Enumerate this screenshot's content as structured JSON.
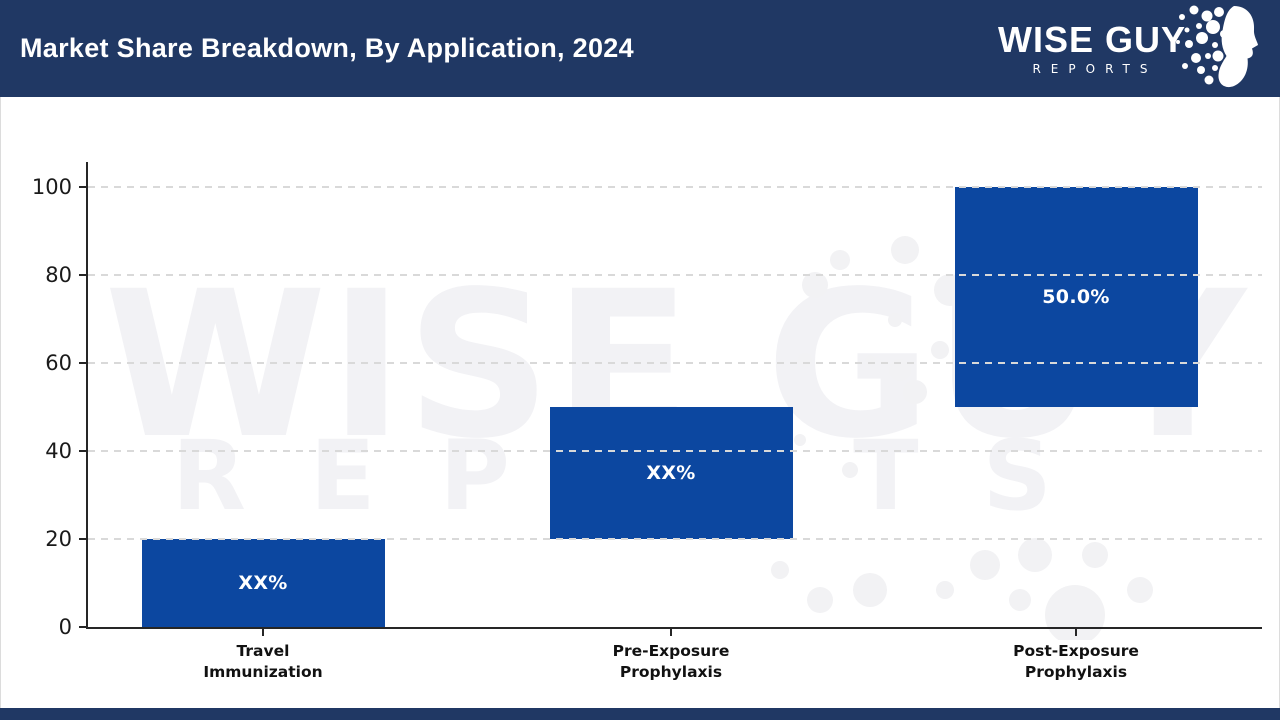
{
  "header": {
    "title": "Market Share Breakdown, By Application, 2024",
    "logo_line1": "WISE GUY",
    "logo_line2": "REPORTS"
  },
  "watermark": {
    "line1": "WISE GUY",
    "line2": "REPORTS"
  },
  "chart_data": {
    "type": "bar",
    "variant": "waterfall",
    "categories": [
      "Travel Immunization",
      "Pre-Exposure Prophylaxis",
      "Post-Exposure Prophylaxis"
    ],
    "category_lines": [
      [
        "Travel",
        "Immunization"
      ],
      [
        "Pre-Exposure",
        "Prophylaxis"
      ],
      [
        "Post-Exposure",
        "Prophylaxis"
      ]
    ],
    "series": [
      {
        "name": "Travel Immunization",
        "start": 0,
        "end": 20,
        "label": "XX%"
      },
      {
        "name": "Pre-Exposure Prophylaxis",
        "start": 20,
        "end": 50,
        "label": "XX%"
      },
      {
        "name": "Post-Exposure Prophylaxis",
        "start": 50,
        "end": 100,
        "label": "50.0%"
      }
    ],
    "ylim": [
      0,
      100
    ],
    "yticks": [
      0,
      20,
      40,
      60,
      80,
      100
    ],
    "xlabel": "",
    "ylabel": "",
    "grid": "horizontal-dashed",
    "legend": "none",
    "bar_color": "#0C47A0",
    "bar_label_color": "#FFFFFF"
  },
  "colors": {
    "header_bg": "#203864",
    "footer_bg": "#203864",
    "bar": "#0C47A0",
    "grid": "#D9D9D9",
    "axis": "#262626",
    "watermark": "#F2F2F5"
  }
}
